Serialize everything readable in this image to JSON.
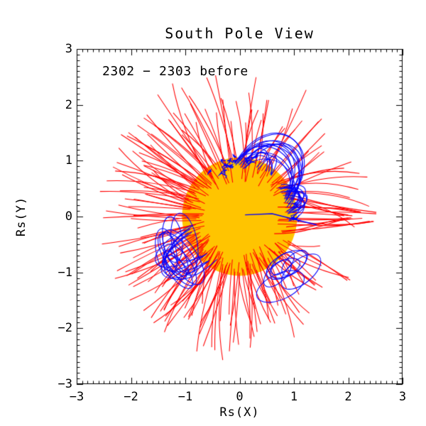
{
  "chart_data": {
    "type": "line",
    "title": "South Pole View",
    "annotation": "2302 − 2303 before",
    "xlabel": "Rs(X)",
    "ylabel": "Rs(Y)",
    "x_range": [
      -3,
      3
    ],
    "y_range": [
      -3,
      3
    ],
    "x_ticks": [
      -3,
      -2,
      -1,
      0,
      1,
      2,
      3
    ],
    "y_ticks": [
      -3,
      -2,
      -1,
      0,
      1,
      2,
      3
    ],
    "x_tick_labels": [
      "−3",
      "−2",
      "−1",
      "0",
      "1",
      "2",
      "3"
    ],
    "y_tick_labels": [
      "−3",
      "−2",
      "−1",
      "0",
      "1",
      "2",
      "3"
    ],
    "minor_tick_interval": 0.1,
    "grid": false,
    "background_color": "#ffffff",
    "axis_color": "#000000",
    "sun": {
      "radius": 1.06,
      "color": "#ffc400"
    },
    "colors": {
      "open_field": "#ff0000",
      "closed_field": "#0000ff"
    },
    "seed": 7,
    "field_line_clusters": [
      {
        "id": "red-top-fan",
        "type": "fan",
        "color": "open_field",
        "theta": [
          58,
          124
        ],
        "count": 30,
        "r_start": [
          0.62,
          1.02
        ],
        "r_end": [
          1.6,
          2.6
        ],
        "drift": [
          -10,
          10
        ]
      },
      {
        "id": "red-upper-left-fan",
        "type": "fan",
        "color": "open_field",
        "theta": [
          124,
          172
        ],
        "count": 38,
        "r_start": [
          0.62,
          1.02
        ],
        "r_end": [
          1.7,
          2.7
        ],
        "drift": [
          -14,
          14
        ]
      },
      {
        "id": "red-left-fan",
        "type": "fan",
        "color": "open_field",
        "theta": [
          172,
          200
        ],
        "count": 14,
        "r_start": [
          0.65,
          1.0
        ],
        "r_end": [
          1.8,
          2.65
        ],
        "drift": [
          -8,
          8
        ]
      },
      {
        "id": "red-lower-left-fan",
        "type": "fan",
        "color": "open_field",
        "theta": [
          200,
          252
        ],
        "count": 40,
        "r_start": [
          0.62,
          1.02
        ],
        "r_end": [
          1.7,
          2.6
        ],
        "drift": [
          -14,
          14
        ]
      },
      {
        "id": "red-bottom-fan",
        "type": "fan",
        "color": "open_field",
        "theta": [
          252,
          290
        ],
        "count": 22,
        "r_start": [
          0.62,
          1.02
        ],
        "r_end": [
          1.6,
          2.5
        ],
        "drift": [
          -10,
          10
        ]
      },
      {
        "id": "red-bottom-right-fan",
        "type": "fan",
        "color": "open_field",
        "theta": [
          290,
          334
        ],
        "count": 22,
        "r_start": [
          0.62,
          1.02
        ],
        "r_end": [
          1.5,
          2.45
        ],
        "drift": [
          -12,
          12
        ]
      },
      {
        "id": "red-right-streamer",
        "type": "streamer",
        "color": "open_field",
        "theta": [
          -26,
          28
        ],
        "count": 16,
        "x_end": [
          1.9,
          2.6
        ],
        "y_end": [
          0.015,
          0.09
        ]
      },
      {
        "id": "red-top-right-fan",
        "type": "fan",
        "color": "open_field",
        "theta": [
          30,
          56
        ],
        "count": 9,
        "r_start": [
          0.7,
          1.0
        ],
        "r_end": [
          1.7,
          2.4
        ],
        "drift": [
          -8,
          8
        ]
      },
      {
        "id": "red-right-upper-fan",
        "type": "fan",
        "color": "open_field",
        "theta": [
          18,
          46
        ],
        "count": 7,
        "r_start": [
          0.75,
          1.0
        ],
        "r_end": [
          1.9,
          2.5
        ],
        "drift": [
          -26,
          -6
        ]
      },
      {
        "id": "blue-ne-arcade",
        "type": "arcade",
        "color": "closed_field",
        "foot1": [
          80,
          96
        ],
        "foot2": [
          8,
          28
        ],
        "apex": [
          1.25,
          1.9
        ],
        "count": 13
      },
      {
        "id": "blue-ne-inner-arcade",
        "type": "arcade",
        "color": "closed_field",
        "foot1": [
          68,
          84
        ],
        "foot2": [
          44,
          60
        ],
        "apex": [
          1.08,
          1.3
        ],
        "count": 5
      },
      {
        "id": "blue-right-limb-arcade",
        "type": "arcade",
        "color": "closed_field",
        "foot1": [
          24,
          40
        ],
        "foot2": [
          -8,
          8
        ],
        "apex": [
          1.04,
          1.3
        ],
        "count": 10
      },
      {
        "id": "blue-left-arcade",
        "type": "arcade",
        "color": "closed_field",
        "foot1": [
          188,
          206
        ],
        "foot2": [
          224,
          242
        ],
        "apex": [
          1.35,
          1.85
        ],
        "count": 6
      },
      {
        "id": "blue-left-ellipses",
        "type": "ellipses",
        "color": "closed_field",
        "center_theta": [
          196,
          226
        ],
        "center_r": [
          1.1,
          1.5
        ],
        "major": [
          0.28,
          0.58
        ],
        "ratio": 0.42,
        "count": 9
      },
      {
        "id": "blue-se-ellipses",
        "type": "ellipses",
        "color": "closed_field",
        "center_theta": [
          -62,
          -38
        ],
        "center_r": [
          1.15,
          1.55
        ],
        "major": [
          0.24,
          0.5
        ],
        "ratio": 0.5,
        "count": 7
      },
      {
        "id": "blue-limb-squiggles-nw",
        "type": "squiggle",
        "color": "closed_field",
        "theta": [
          102,
          124
        ],
        "r": [
          0.86,
          1.04
        ],
        "count": 9,
        "steps": 7,
        "amp": 0.05
      },
      {
        "id": "blue-limb-squiggles-n",
        "type": "squiggle",
        "color": "closed_field",
        "theta": [
          78,
          96
        ],
        "r": [
          0.94,
          1.1
        ],
        "count": 6,
        "steps": 6,
        "amp": 0.045
      },
      {
        "id": "blue-limb-squiggles-e",
        "type": "squiggle",
        "color": "closed_field",
        "theta": [
          -6,
          16
        ],
        "r": [
          0.94,
          1.1
        ],
        "count": 5,
        "steps": 6,
        "amp": 0.045
      },
      {
        "id": "blue-disk-crossing-line",
        "type": "polyline",
        "color": "closed_field",
        "points": [
          [
            0.1,
            0.03
          ],
          [
            0.6,
            0.05
          ],
          [
            1.05,
            -0.06
          ],
          [
            1.42,
            -0.15
          ]
        ],
        "width": 1.4
      }
    ]
  }
}
